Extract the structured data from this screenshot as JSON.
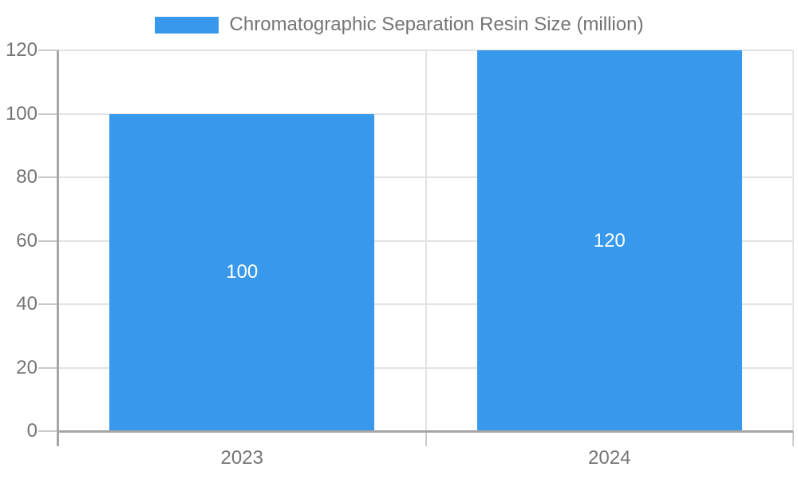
{
  "legend": {
    "label": "Chromatographic Separation Resin Size (million)",
    "swatch_color": "#3899ec"
  },
  "chart_data": {
    "type": "bar",
    "title": "Chromatographic Separation Resin Size (million)",
    "categories": [
      "2023",
      "2024"
    ],
    "series": [
      {
        "name": "Chromatographic Separation Resin Size (million)",
        "color": "#3899ec",
        "values": [
          100,
          120
        ]
      }
    ],
    "data_labels": [
      "100",
      "120"
    ],
    "xlabel": "",
    "ylabel": "",
    "ylim": [
      0,
      120
    ],
    "yticks": [
      0,
      20,
      40,
      60,
      80,
      100,
      120
    ],
    "grid": true,
    "legend_position": "top"
  },
  "colors": {
    "bar": "#3899ec",
    "axis": "#a6a6a6",
    "gridline": "#e3e3e3",
    "tick": "#c9c9c9",
    "text": "#757575",
    "bar_label": "#ffffff",
    "background": "#ffffff"
  }
}
